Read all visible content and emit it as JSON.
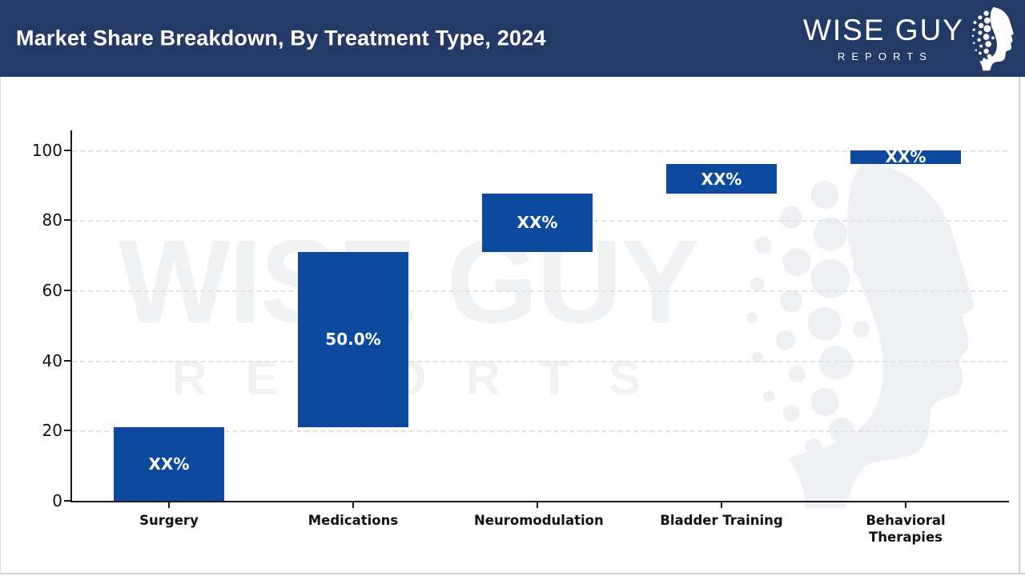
{
  "header": {
    "title": "Market Share Breakdown, By Treatment Type, 2024",
    "brand": {
      "line1": "WISE GUY",
      "line2": "REPORTS"
    }
  },
  "watermark": {
    "line1": "WISE GUY",
    "line2": "REPORTS"
  },
  "chart_data": {
    "type": "bar",
    "subtype": "waterfall",
    "title": "Market Share Breakdown, By Treatment Type, 2024",
    "categories": [
      "Surgery",
      "Medications",
      "Neuromodulation",
      "Bladder Training",
      "Behavioral Therapies"
    ],
    "values": [
      21,
      50,
      16.5,
      8.5,
      4
    ],
    "cumulative_start": [
      0,
      21,
      71,
      87.5,
      96
    ],
    "cumulative_end": [
      21,
      71,
      87.5,
      96,
      100
    ],
    "bar_labels": [
      "XX%",
      "50.0%",
      "XX%",
      "XX%",
      "XX%"
    ],
    "xlabel": "",
    "ylabel": "",
    "ylim": [
      0,
      105
    ],
    "yticks": [
      0,
      20,
      40,
      60,
      80,
      100
    ],
    "grid": "horizontal-dashed",
    "legend": "none",
    "bar_color": "#0d4a9e",
    "bar_label_color": "#ffffff"
  },
  "colors": {
    "header_bg": "#233a66",
    "axis": "#1a1a1a",
    "gridline": "#e2e2e2",
    "watermark": "#f1f2f4",
    "frame": "#cfcfcf"
  }
}
